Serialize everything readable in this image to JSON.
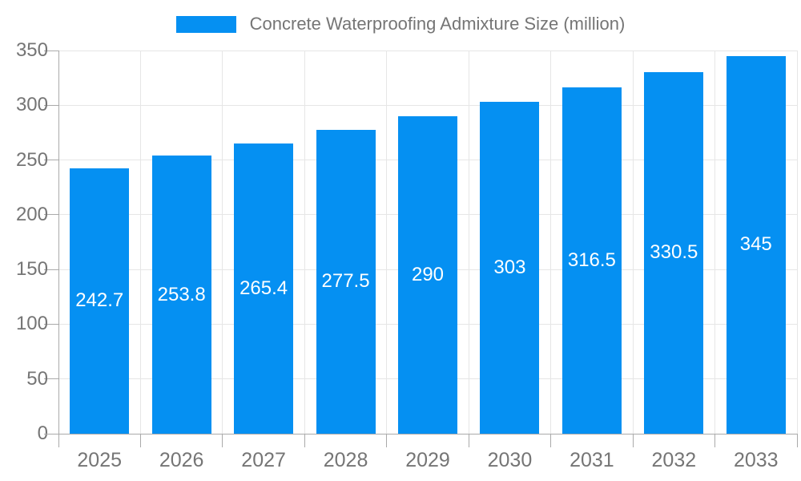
{
  "chart_data": {
    "type": "bar",
    "title": "Concrete Waterproofing Admixture Size (million)",
    "categories": [
      "2025",
      "2026",
      "2027",
      "2028",
      "2029",
      "2030",
      "2031",
      "2032",
      "2033"
    ],
    "values": [
      242.7,
      253.8,
      265.4,
      277.5,
      290,
      303,
      316.5,
      330.5,
      345
    ],
    "value_labels": [
      "242.7",
      "253.8",
      "265.4",
      "277.5",
      "290",
      "303",
      "316.5",
      "330.5",
      "345"
    ],
    "xlabel": "",
    "ylabel": "",
    "ylim": [
      0,
      350
    ],
    "ytick_step": 50,
    "ytick_labels": [
      "0",
      "50",
      "100",
      "150",
      "200",
      "250",
      "300",
      "350"
    ],
    "grid": "on",
    "legend_position": "top-center",
    "colors": {
      "bar": "#0590f2",
      "grid_line": "#e6e6e6",
      "axis_line": "#aaaaaa",
      "axis_text": "#757575",
      "title_text": "#757575",
      "value_text": "#ffffff",
      "background": "#ffffff"
    }
  }
}
